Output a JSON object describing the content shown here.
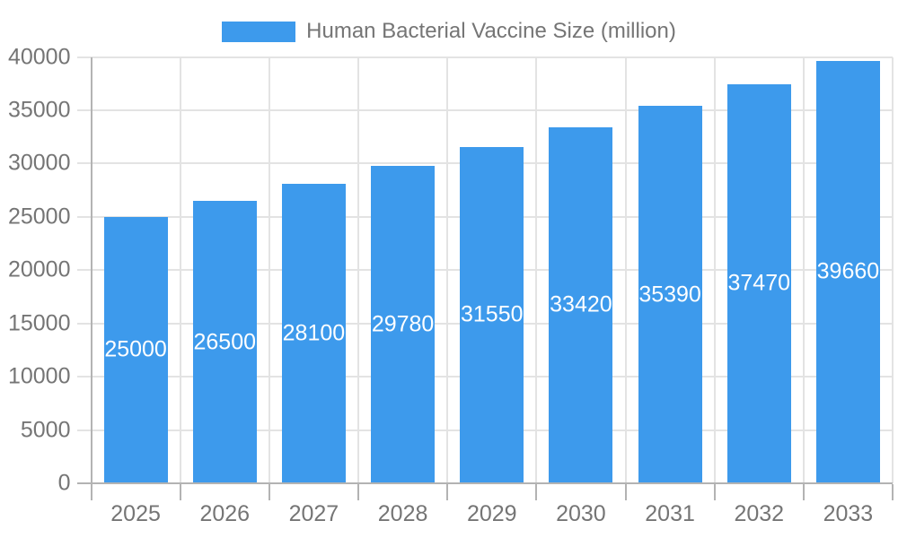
{
  "chart_data": {
    "type": "bar",
    "title": "Human Bacterial Vaccine Size (million)",
    "categories": [
      "2025",
      "2026",
      "2027",
      "2028",
      "2029",
      "2030",
      "2031",
      "2032",
      "2033"
    ],
    "series": [
      {
        "name": "Human Bacterial Vaccine Size (million)",
        "values": [
          25000,
          26500,
          28100,
          29780,
          31550,
          33420,
          35390,
          37470,
          39660
        ]
      }
    ],
    "value_labels": [
      "25000",
      "26500",
      "28100",
      "29780",
      "31550",
      "33420",
      "35390",
      "37470",
      "39660"
    ],
    "y_tick_labels": [
      "0",
      "5000",
      "10000",
      "15000",
      "20000",
      "25000",
      "30000",
      "35000",
      "40000"
    ],
    "xlabel": "",
    "ylabel": "",
    "ylim": [
      0,
      40000
    ],
    "ytick_step": 5000,
    "grid": true,
    "legend_position": "top",
    "value_label_position": "inside-center",
    "colors": {
      "bar": "#3d9aec",
      "axis_line": "#b3b3b3",
      "grid_line": "#e3e3e3",
      "tick_label": "#757575",
      "legend_text": "#757575",
      "value_label": "#ffffff",
      "background": "#ffffff"
    }
  }
}
